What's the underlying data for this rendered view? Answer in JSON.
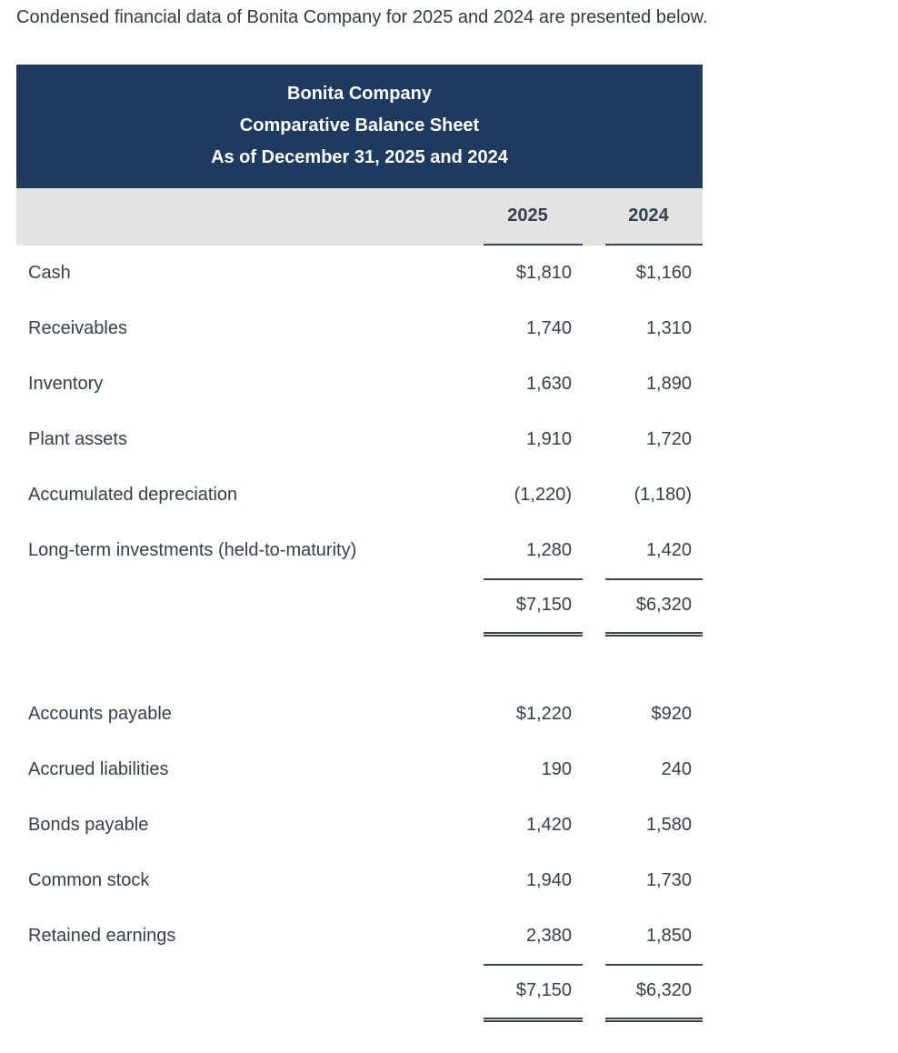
{
  "intro": "Condensed financial data of Bonita Company for 2025 and 2024 are presented below.",
  "sheet": {
    "title": [
      "Bonita Company",
      "Comparative Balance Sheet",
      "As of December 31, 2025 and 2024"
    ],
    "columns": {
      "col1": "2025",
      "col2": "2024"
    },
    "assets": {
      "rows": [
        {
          "label": "Cash",
          "v2025": "$1,810",
          "v2024": "$1,160"
        },
        {
          "label": "Receivables",
          "v2025": "1,740",
          "v2024": "1,310"
        },
        {
          "label": "Inventory",
          "v2025": "1,630",
          "v2024": "1,890"
        },
        {
          "label": "Plant assets",
          "v2025": "1,910",
          "v2024": "1,720"
        },
        {
          "label": "Accumulated depreciation",
          "v2025": "(1,220)",
          "v2024": "(1,180)"
        },
        {
          "label": "Long-term investments (held-to-maturity)",
          "v2025": "1,280",
          "v2024": "1,420"
        }
      ],
      "total": {
        "v2025": "$7,150",
        "v2024": "$6,320"
      }
    },
    "liabilities": {
      "rows": [
        {
          "label": "Accounts payable",
          "v2025": "$1,220",
          "v2024": "$920"
        },
        {
          "label": "Accrued liabilities",
          "v2025": "190",
          "v2024": "240"
        },
        {
          "label": "Bonds payable",
          "v2025": "1,420",
          "v2024": "1,580"
        },
        {
          "label": "Common stock",
          "v2025": "1,940",
          "v2024": "1,730"
        },
        {
          "label": "Retained earnings",
          "v2025": "2,380",
          "v2024": "1,850"
        }
      ],
      "total": {
        "v2025": "$7,150",
        "v2024": "$6,320"
      }
    },
    "colors": {
      "header_bg": "#1e3a5f",
      "header_text": "#ffffff",
      "subheader_bg": "#e3e3e4",
      "body_text": "#33404e",
      "rule_color": "#3c4653"
    }
  }
}
